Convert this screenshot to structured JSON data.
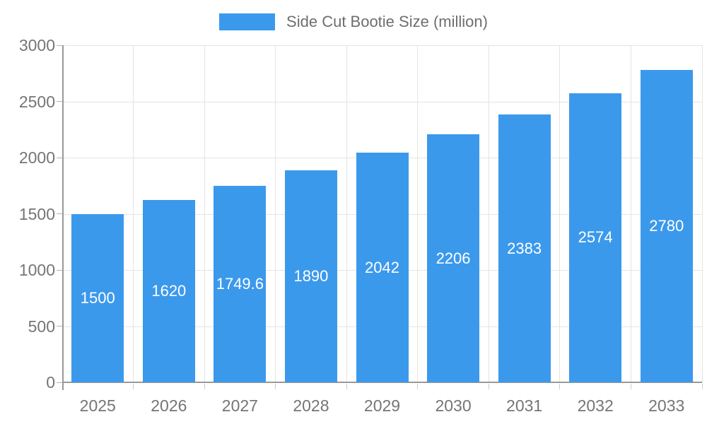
{
  "legend": {
    "label": "Side Cut Bootie Size (million)"
  },
  "colors": {
    "bar": "#3b99ec",
    "bar_label": "#ffffff",
    "grid": "#e4e4e4",
    "axis_line": "#999999",
    "y_tick_mark": "#b3b3b3",
    "x_tick_mark": "#cccccc",
    "tick_label": "#757575",
    "legend_text": "#6e6e6e",
    "background": "#ffffff"
  },
  "chart_data": {
    "type": "bar",
    "title": "Side Cut Bootie Size (million)",
    "categories": [
      "2025",
      "2026",
      "2027",
      "2028",
      "2029",
      "2030",
      "2031",
      "2032",
      "2033"
    ],
    "values": [
      1500,
      1620,
      1749.6,
      1890,
      2042,
      2206,
      2383,
      2574,
      2780
    ],
    "bar_labels": [
      "1500",
      "1620",
      "1749.6",
      "1890",
      "2042",
      "2206",
      "2383",
      "2574",
      "2780"
    ],
    "y_ticks": [
      0,
      500,
      1000,
      1500,
      2000,
      2500,
      3000
    ],
    "ylim": [
      0,
      3000
    ],
    "xlabel": "",
    "ylabel": "",
    "grid": true,
    "legend_position": "top-center",
    "bar_label_position": "inside-middle"
  }
}
